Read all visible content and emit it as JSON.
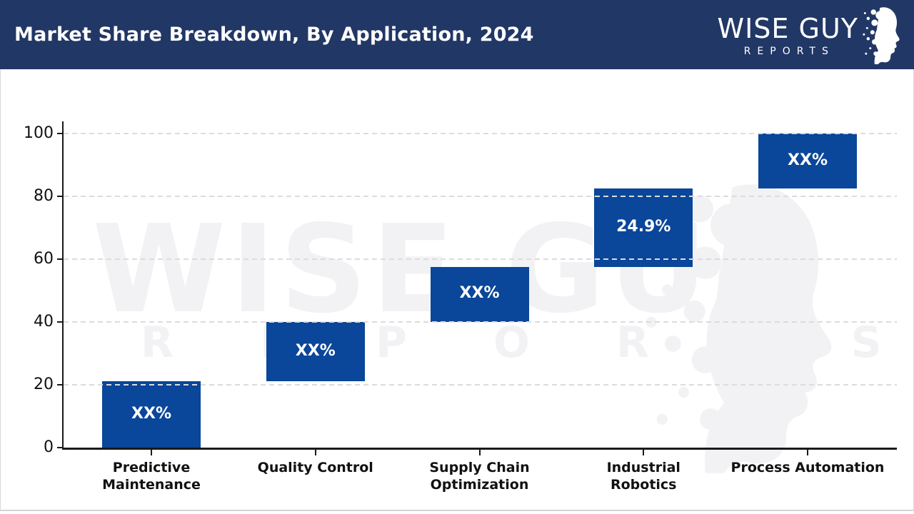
{
  "header": {
    "title": "Market Share Breakdown, By Application, 2024",
    "logo": {
      "line1": "WISE GUY",
      "line2": "REPORTS"
    }
  },
  "watermark": {
    "line1": "WISE GUY",
    "line2": "R E P O R T S"
  },
  "chart_data": {
    "type": "bar",
    "subtype": "waterfall",
    "title": "Market Share Breakdown, By Application, 2024",
    "ylabel": "",
    "xlabel": "",
    "ylim": [
      0,
      100
    ],
    "yticks": [
      0,
      20,
      40,
      60,
      80,
      100
    ],
    "grid": "horizontal-dashed",
    "legend": "none",
    "categories": [
      "Predictive Maintenance",
      "Quality Control",
      "Supply Chain Optimization",
      "Industrial Robotics",
      "Process Automation"
    ],
    "bars": [
      {
        "category": "Predictive Maintenance",
        "lines": [
          "Predictive",
          "Maintenance"
        ],
        "label": "XX%",
        "start": 0,
        "end": 21.1
      },
      {
        "category": "Quality Control",
        "lines": [
          "Quality Control"
        ],
        "label": "XX%",
        "start": 21.1,
        "end": 40.0
      },
      {
        "category": "Supply Chain Optimization",
        "lines": [
          "Supply Chain",
          "Optimization"
        ],
        "label": "XX%",
        "start": 40.0,
        "end": 57.6
      },
      {
        "category": "Industrial Robotics",
        "lines": [
          "Industrial",
          "Robotics"
        ],
        "label": "24.9%",
        "start": 57.6,
        "end": 82.5
      },
      {
        "category": "Process Automation",
        "lines": [
          "Process Automation"
        ],
        "label": "XX%",
        "start": 82.5,
        "end": 100.0
      }
    ],
    "known_value_label": "24.9%",
    "masked_value_label": "XX%"
  },
  "colors": {
    "header_bg": "#213765",
    "bar": "#0a4699",
    "bar_label": "#ffffff",
    "grid": "#dcdcdc",
    "axis": "#1a1a1a",
    "tick_text": "#111111",
    "watermark": "#f2f2f4"
  }
}
